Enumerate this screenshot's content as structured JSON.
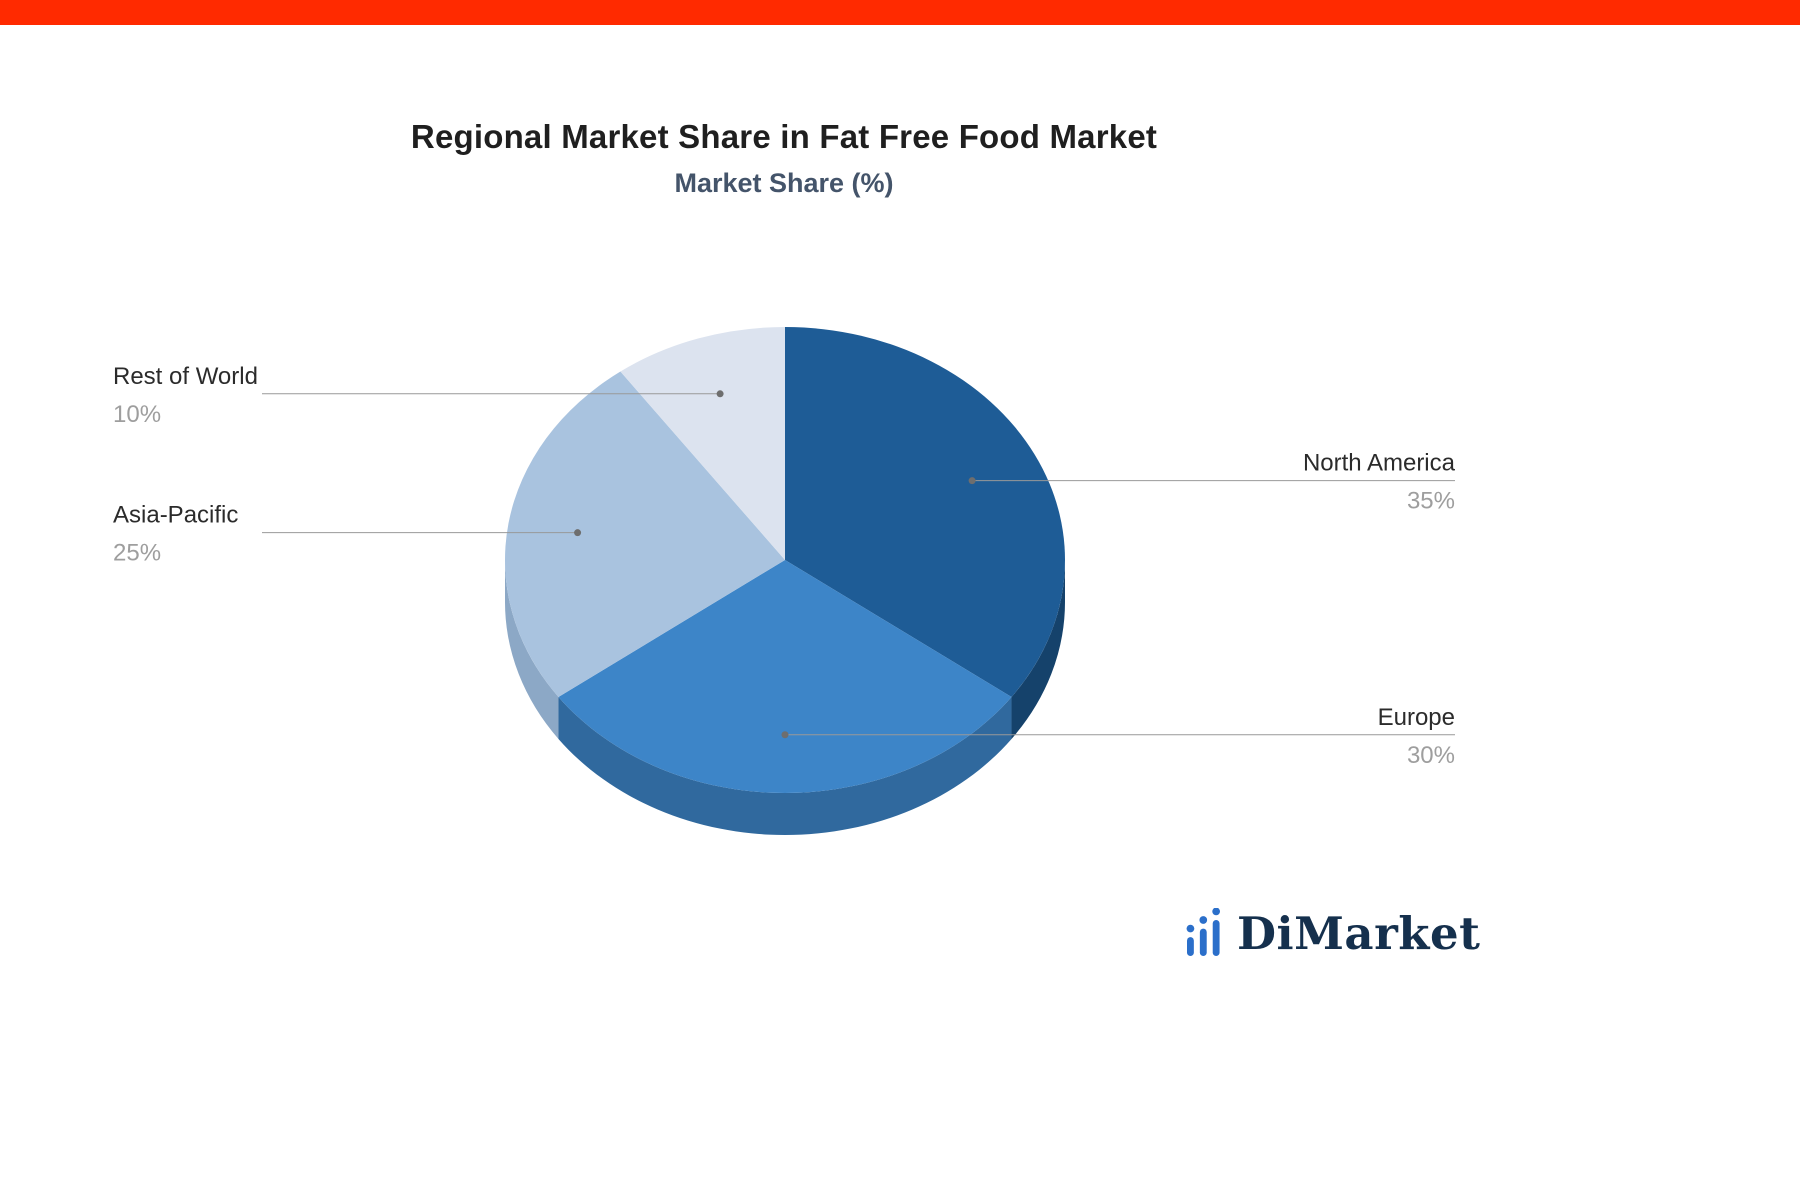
{
  "page": {
    "top_bar": {
      "color": "#FF2A00"
    }
  },
  "chart_data": {
    "type": "pie",
    "title": "Regional Market Share in Fat Free Food Market",
    "subtitle": "Market Share (%)",
    "unit": "%",
    "effect": "3d",
    "start_angle_deg": -90,
    "direction": "clockwise",
    "legend_position": "none",
    "slices": [
      {
        "label": "North America",
        "value": 35,
        "pct_label": "35%",
        "color": "#1E5C96",
        "side_color": "#15426B",
        "callout_side": "right"
      },
      {
        "label": "Europe",
        "value": 30,
        "pct_label": "30%",
        "color": "#3D85C8",
        "side_color": "#30699E",
        "callout_side": "right"
      },
      {
        "label": "Asia-Pacific",
        "value": 25,
        "pct_label": "25%",
        "color": "#A9C3DF",
        "side_color": "#8CA8C6",
        "callout_side": "left"
      },
      {
        "label": "Rest of World",
        "value": 10,
        "pct_label": "10%",
        "color": "#DCE3EF",
        "side_color": "#C4CFDF",
        "callout_side": "left"
      }
    ],
    "style": {
      "label_color": "#2B2B2B",
      "value_color": "#9E9E9E",
      "line_color": "#999999",
      "dot_color": "#6E6E6E"
    }
  },
  "logo": {
    "text": "DiMarket",
    "icon": "bar-chart-icon",
    "text_color": "#15304D",
    "icon_color": "#2B6FCA"
  }
}
